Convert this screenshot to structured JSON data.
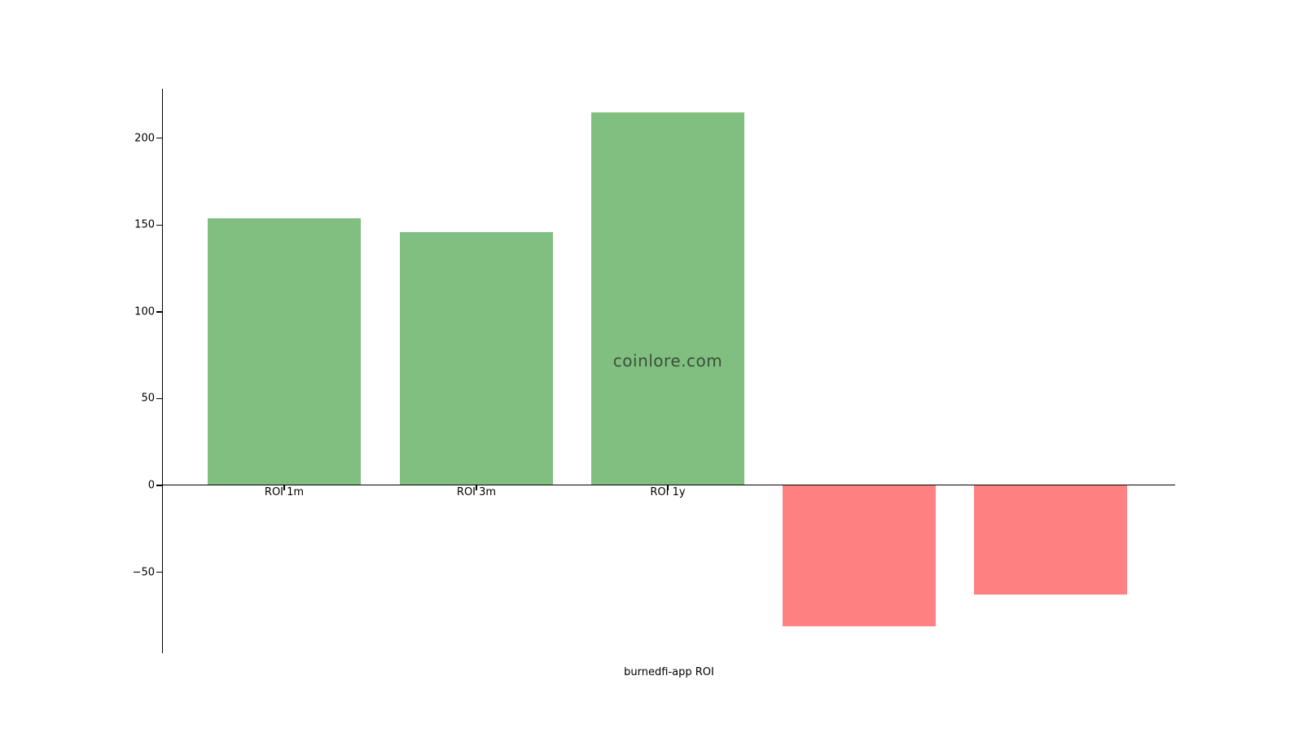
{
  "page": {
    "background_color": "#ffffff",
    "watermark": "coinlore.com"
  },
  "chart_data": {
    "type": "bar",
    "title": "",
    "xlabel": "burnedfi-app ROI",
    "ylabel": "",
    "categories": [
      "ROI 1m",
      "ROI 3m",
      "ROI 1y",
      "",
      ""
    ],
    "values": [
      154,
      146,
      215,
      -81,
      -63
    ],
    "yticks": [
      200,
      150,
      100,
      50,
      0,
      -50
    ],
    "ytick_labels": [
      "200",
      "150",
      "100",
      "50",
      "0",
      "−50"
    ],
    "ylim": [
      -96,
      230
    ],
    "grid": false,
    "legend": null,
    "positive_color": "#80bf80",
    "negative_color": "#ff8080",
    "axis_color": "#000000",
    "text_color": "#000000"
  }
}
